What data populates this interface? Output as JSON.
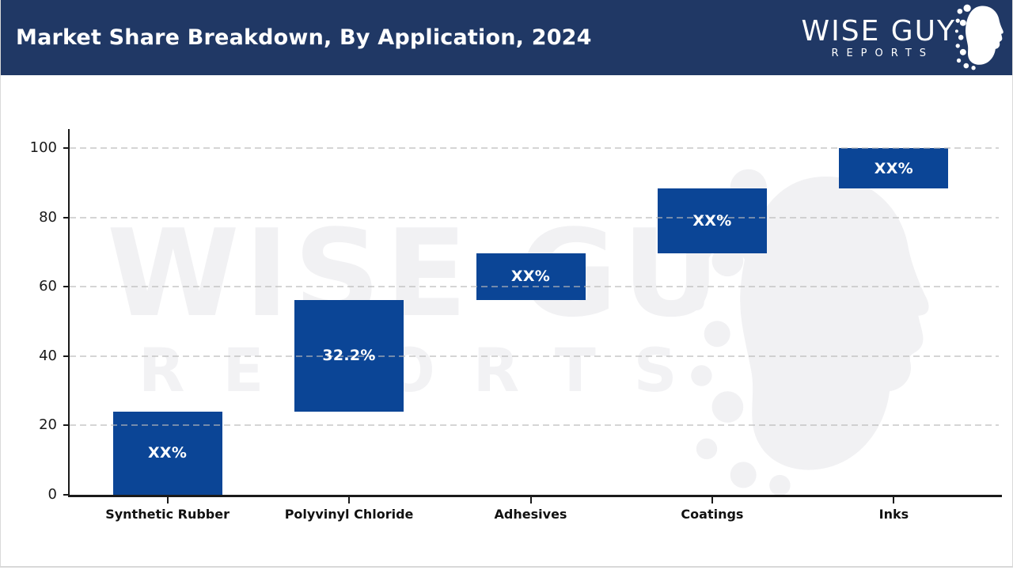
{
  "header": {
    "title": "Market Share Breakdown, By Application, 2024",
    "bg_color": "#203865",
    "logo": {
      "line1": "WISE GUY",
      "line2": "REPORTS"
    }
  },
  "watermark": {
    "line1": "WISE GUY",
    "line2": "REPORTS"
  },
  "chart_data": {
    "type": "bar",
    "subtype": "floating-segment bars (waterfall-style market share)",
    "title": "Market Share Breakdown, By Application, 2024",
    "categories": [
      "Synthetic Rubber",
      "Polyvinyl Chloride",
      "Adhesives",
      "Coatings",
      "Inks"
    ],
    "segments": [
      [
        0,
        24
      ],
      [
        24,
        56.2
      ],
      [
        56.2,
        69.6
      ],
      [
        69.6,
        88.3
      ],
      [
        88.3,
        100
      ]
    ],
    "values": [
      24,
      32.2,
      13.4,
      18.7,
      11.7
    ],
    "bar_labels": [
      "XX%",
      "32.2%",
      "XX%",
      "XX%",
      "XX%"
    ],
    "xlabel": "",
    "ylabel": "",
    "yticks": [
      0,
      20,
      40,
      60,
      80,
      100
    ],
    "ylim": [
      0,
      105
    ],
    "grid": "dashed horizontal gridlines, drawn over bars",
    "legend": "none",
    "bar_color": "#0b4596",
    "bar_label_color": "#ffffff",
    "axis_color": "#1a1a1a",
    "gridline_color": "#bcbcbc"
  }
}
